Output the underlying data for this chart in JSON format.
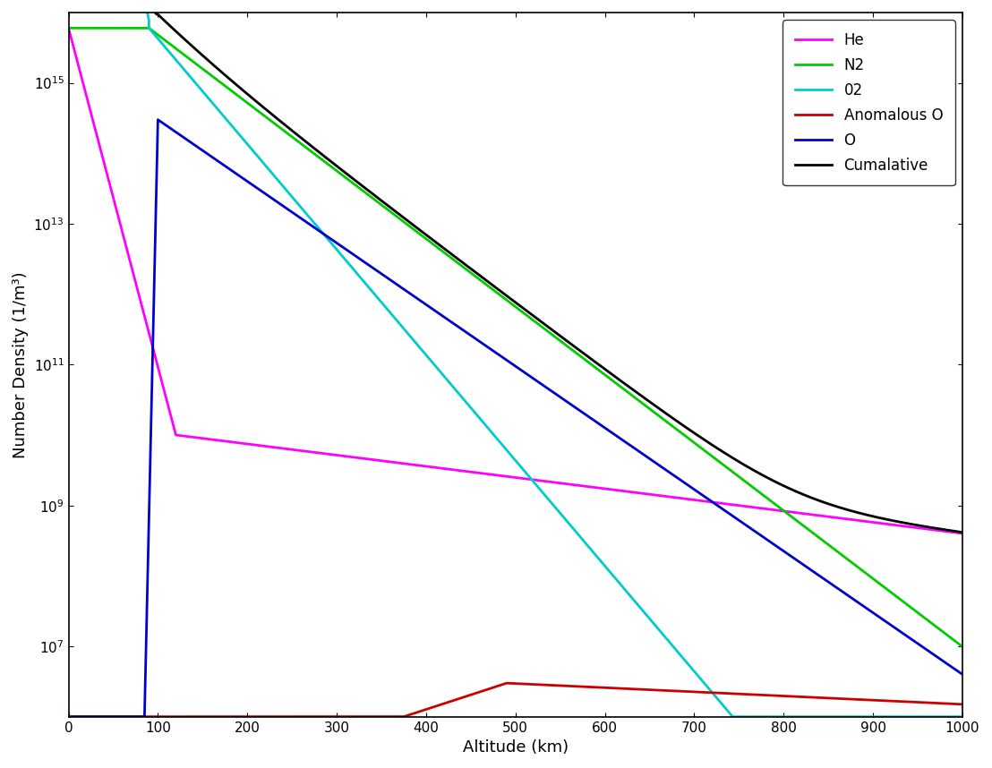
{
  "title": "",
  "xlabel": "Altitude (km)",
  "ylabel": "Number Density (1/m³)",
  "xlim": [
    0,
    1000
  ],
  "ylim_log": [
    6,
    16
  ],
  "legend_labels": [
    "He",
    "N2",
    "02",
    "Anomalous O",
    "O",
    "Cumalative"
  ],
  "legend_colors": [
    "#ff00ff",
    "#00cc00",
    "#00cccc",
    "#cc0000",
    "#0000cc",
    "#000000"
  ],
  "background_color": "#ffffff",
  "xticks": [
    0,
    100,
    200,
    300,
    400,
    500,
    600,
    700,
    800,
    900,
    1000
  ]
}
